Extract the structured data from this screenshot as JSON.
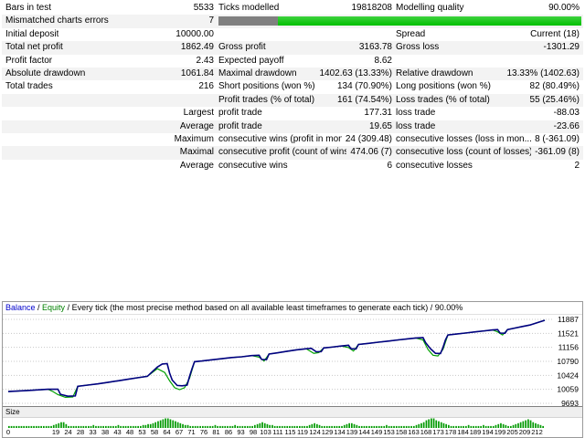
{
  "report_table": {
    "rows": [
      {
        "cells": [
          "Bars in test",
          "5533",
          "Ticks modelled",
          "19818208",
          "Modelling quality",
          "90.00%"
        ]
      },
      {
        "cells": [
          "Mismatched charts errors",
          "7",
          "",
          "",
          "",
          ""
        ],
        "quality_bar": true
      },
      {
        "cells": [
          "Initial deposit",
          "10000.00",
          "",
          "",
          "Spread",
          "Current (18)"
        ]
      },
      {
        "cells": [
          "Total net profit",
          "1862.49",
          "Gross profit",
          "3163.78",
          "Gross loss",
          "-1301.29"
        ]
      },
      {
        "cells": [
          "Profit factor",
          "2.43",
          "Expected payoff",
          "8.62",
          "",
          ""
        ]
      },
      {
        "cells": [
          "Absolute drawdown",
          "1061.84",
          "Maximal drawdown",
          "1402.63 (13.33%)",
          "Relative drawdown",
          "13.33% (1402.63)"
        ]
      },
      {
        "cells": [
          "Total trades",
          "216",
          "Short positions (won %)",
          "134 (70.90%)",
          "Long positions (won %)",
          "82 (80.49%)"
        ]
      },
      {
        "cells": [
          "",
          "",
          "Profit trades (% of total)",
          "161 (74.54%)",
          "Loss trades (% of total)",
          "55 (25.46%)"
        ]
      },
      {
        "cells": [
          "",
          "Largest",
          "profit trade",
          "177.31",
          "loss trade",
          "-88.03"
        ]
      },
      {
        "cells": [
          "",
          "Average",
          "profit trade",
          "19.65",
          "loss trade",
          "-23.66"
        ]
      },
      {
        "cells": [
          "",
          "Maximum",
          "consecutive wins (profit in mon...",
          "24 (309.48)",
          "consecutive losses (loss in mon...",
          "8 (-361.09)"
        ]
      },
      {
        "cells": [
          "",
          "Maximal",
          "consecutive profit (count of wins)",
          "474.06 (7)",
          "consecutive loss (count of losses)",
          "-361.09 (8)"
        ]
      },
      {
        "cells": [
          "",
          "Average",
          "consecutive wins",
          "6",
          "consecutive losses",
          "2"
        ]
      }
    ],
    "quality_bar_colors": {
      "gray": "#808080",
      "green": "#00c000"
    }
  },
  "chart_data": {
    "type": "line",
    "header": {
      "balance_label": "Balance",
      "equity_label": "Equity",
      "method_text": "Every tick (the most precise method based on all available least timeframes to generate each tick)",
      "quality_text": "90.00%"
    },
    "ylim": [
      9693,
      11887
    ],
    "xlim": [
      0,
      216
    ],
    "y_ticks": [
      11887,
      11521,
      11156,
      10790,
      10424,
      10059,
      9693
    ],
    "x_tick_labels": [
      "0",
      "19",
      "24",
      "28",
      "33",
      "38",
      "43",
      "48",
      "53",
      "58",
      "64",
      "67",
      "71",
      "76",
      "81",
      "86",
      "93",
      "98",
      "103",
      "111",
      "115",
      "119",
      "124",
      "129",
      "134",
      "139",
      "144",
      "149",
      "153",
      "158",
      "163",
      "168",
      "173",
      "178",
      "184",
      "189",
      "194",
      "199",
      "205",
      "209",
      "212"
    ],
    "grid": true,
    "legend_position": "top",
    "series": [
      {
        "name": "Balance",
        "color": "#000080",
        "points": [
          [
            0,
            10000
          ],
          [
            8,
            10030
          ],
          [
            16,
            10060
          ],
          [
            20,
            10062
          ],
          [
            21,
            9930
          ],
          [
            24,
            9880
          ],
          [
            27,
            9885
          ],
          [
            28,
            10140
          ],
          [
            32,
            10170
          ],
          [
            36,
            10200
          ],
          [
            40,
            10240
          ],
          [
            44,
            10280
          ],
          [
            48,
            10320
          ],
          [
            52,
            10360
          ],
          [
            56,
            10400
          ],
          [
            60,
            10640
          ],
          [
            62,
            10720
          ],
          [
            64,
            10730
          ],
          [
            65,
            10480
          ],
          [
            66,
            10300
          ],
          [
            68,
            10160
          ],
          [
            70,
            10150
          ],
          [
            72,
            10170
          ],
          [
            73,
            10400
          ],
          [
            74,
            10600
          ],
          [
            75,
            10780
          ],
          [
            78,
            10800
          ],
          [
            82,
            10830
          ],
          [
            86,
            10860
          ],
          [
            90,
            10890
          ],
          [
            94,
            10910
          ],
          [
            98,
            10940
          ],
          [
            101,
            10950
          ],
          [
            102,
            10840
          ],
          [
            104,
            10835
          ],
          [
            105,
            10980
          ],
          [
            108,
            11010
          ],
          [
            112,
            11050
          ],
          [
            116,
            11090
          ],
          [
            120,
            11120
          ],
          [
            122,
            11130
          ],
          [
            124,
            11040
          ],
          [
            126,
            11045
          ],
          [
            127,
            11140
          ],
          [
            130,
            11160
          ],
          [
            134,
            11190
          ],
          [
            137,
            11210
          ],
          [
            138,
            11120
          ],
          [
            140,
            11115
          ],
          [
            141,
            11230
          ],
          [
            145,
            11260
          ],
          [
            149,
            11290
          ],
          [
            153,
            11320
          ],
          [
            157,
            11350
          ],
          [
            161,
            11380
          ],
          [
            164,
            11400
          ],
          [
            167,
            11410
          ],
          [
            168,
            11280
          ],
          [
            170,
            11120
          ],
          [
            172,
            11000
          ],
          [
            174,
            10995
          ],
          [
            175,
            11150
          ],
          [
            176,
            11350
          ],
          [
            177,
            11480
          ],
          [
            180,
            11500
          ],
          [
            184,
            11530
          ],
          [
            188,
            11560
          ],
          [
            192,
            11590
          ],
          [
            195,
            11610
          ],
          [
            197,
            11620
          ],
          [
            198,
            11530
          ],
          [
            200,
            11525
          ],
          [
            201,
            11620
          ],
          [
            204,
            11660
          ],
          [
            207,
            11700
          ],
          [
            210,
            11740
          ],
          [
            213,
            11800
          ],
          [
            216,
            11862
          ]
        ]
      },
      {
        "name": "Equity",
        "color": "#00a000",
        "points": [
          [
            0,
            10000
          ],
          [
            8,
            10030
          ],
          [
            16,
            10060
          ],
          [
            18,
            10000
          ],
          [
            20,
            9920
          ],
          [
            23,
            9850
          ],
          [
            26,
            9860
          ],
          [
            28,
            10140
          ],
          [
            32,
            10170
          ],
          [
            36,
            10200
          ],
          [
            40,
            10240
          ],
          [
            44,
            10280
          ],
          [
            48,
            10320
          ],
          [
            52,
            10360
          ],
          [
            56,
            10400
          ],
          [
            60,
            10600
          ],
          [
            63,
            10500
          ],
          [
            65,
            10280
          ],
          [
            67,
            10100
          ],
          [
            69,
            10050
          ],
          [
            71,
            10100
          ],
          [
            73,
            10350
          ],
          [
            75,
            10780
          ],
          [
            78,
            10800
          ],
          [
            82,
            10830
          ],
          [
            86,
            10860
          ],
          [
            90,
            10890
          ],
          [
            94,
            10910
          ],
          [
            98,
            10940
          ],
          [
            101,
            10900
          ],
          [
            103,
            10800
          ],
          [
            105,
            10980
          ],
          [
            108,
            11010
          ],
          [
            112,
            11050
          ],
          [
            116,
            11090
          ],
          [
            120,
            11120
          ],
          [
            123,
            11000
          ],
          [
            125,
            11020
          ],
          [
            127,
            11140
          ],
          [
            130,
            11160
          ],
          [
            134,
            11190
          ],
          [
            137,
            11150
          ],
          [
            139,
            11060
          ],
          [
            141,
            11230
          ],
          [
            145,
            11260
          ],
          [
            149,
            11290
          ],
          [
            153,
            11320
          ],
          [
            157,
            11350
          ],
          [
            161,
            11380
          ],
          [
            164,
            11400
          ],
          [
            167,
            11350
          ],
          [
            169,
            11100
          ],
          [
            171,
            10950
          ],
          [
            173,
            10930
          ],
          [
            175,
            11100
          ],
          [
            177,
            11480
          ],
          [
            180,
            11500
          ],
          [
            184,
            11530
          ],
          [
            188,
            11560
          ],
          [
            192,
            11590
          ],
          [
            195,
            11610
          ],
          [
            197,
            11560
          ],
          [
            199,
            11480
          ],
          [
            201,
            11620
          ],
          [
            204,
            11660
          ],
          [
            207,
            11700
          ],
          [
            210,
            11740
          ],
          [
            213,
            11800
          ],
          [
            216,
            11862
          ]
        ]
      }
    ],
    "size_panel": {
      "label": "Size",
      "bar_color": "#009900",
      "relative_heights": [
        2,
        2,
        2,
        2,
        2,
        2,
        2,
        2,
        2,
        2,
        2,
        2,
        2,
        2,
        2,
        2,
        2,
        2,
        3,
        4,
        5,
        6,
        6,
        4,
        2,
        2,
        2,
        2,
        2,
        2,
        2,
        2,
        2,
        2,
        3,
        2,
        2,
        2,
        2,
        2,
        2,
        2,
        2,
        2,
        3,
        2,
        2,
        2,
        2,
        2,
        2,
        2,
        2,
        2,
        3,
        3,
        4,
        4,
        5,
        6,
        7,
        8,
        9,
        10,
        10,
        9,
        8,
        7,
        6,
        5,
        4,
        3,
        3,
        2,
        2,
        2,
        2,
        2,
        2,
        2,
        2,
        2,
        2,
        3,
        2,
        2,
        2,
        2,
        2,
        2,
        2,
        3,
        2,
        2,
        2,
        2,
        2,
        2,
        2,
        3,
        4,
        5,
        6,
        5,
        4,
        3,
        3,
        2,
        2,
        2,
        2,
        2,
        2,
        2,
        2,
        2,
        2,
        2,
        2,
        2,
        2,
        3,
        4,
        5,
        4,
        3,
        2,
        2,
        2,
        2,
        2,
        2,
        2,
        2,
        2,
        3,
        4,
        5,
        5,
        4,
        3,
        2,
        2,
        2,
        2,
        2,
        2,
        2,
        2,
        2,
        2,
        2,
        3,
        2,
        2,
        2,
        2,
        2,
        2,
        2,
        2,
        2,
        2,
        2,
        3,
        4,
        5,
        6,
        8,
        9,
        10,
        10,
        8,
        7,
        6,
        5,
        4,
        3,
        2,
        2,
        2,
        2,
        2,
        2,
        2,
        3,
        2,
        2,
        2,
        2,
        2,
        3,
        2,
        2,
        2,
        2,
        3,
        4,
        5,
        4,
        3,
        2,
        2,
        3,
        4,
        5,
        6,
        7,
        8,
        9,
        8,
        6,
        5,
        4,
        3,
        2
      ]
    }
  }
}
